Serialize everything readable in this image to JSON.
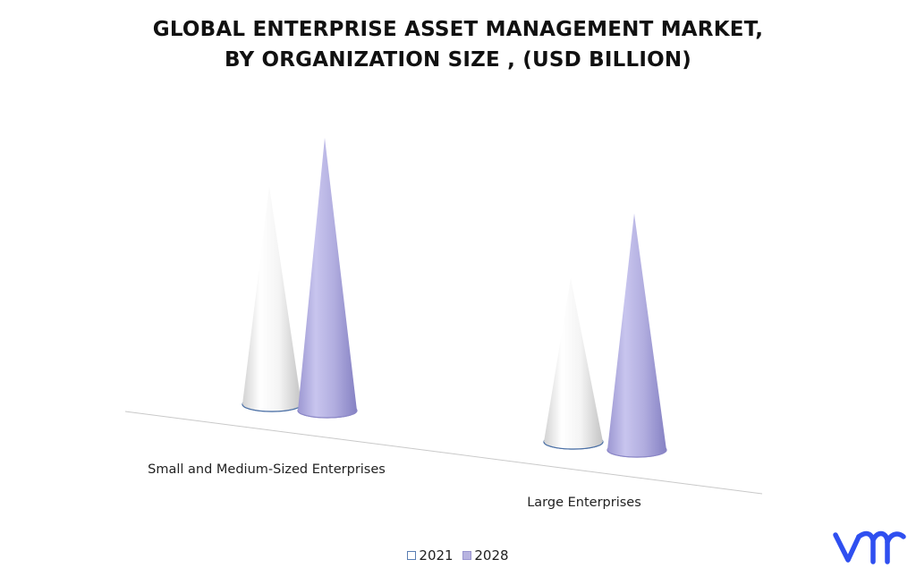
{
  "title_lines": [
    "GLOBAL ENTERPRISE ASSET MANAGEMENT MARKET,",
    "BY ORGANIZATION SIZE , (USD BILLION)"
  ],
  "logo": {
    "icon": "vmr-logo-icon",
    "color": "#2f4ff0"
  },
  "chart_data": {
    "type": "bar",
    "style": "3d-cone",
    "title": "GLOBAL ENTERPRISE ASSET MANAGEMENT MARKET, BY ORGANIZATION SIZE , (USD BILLION)",
    "categories": [
      "Small and Medium-Sized Enterprises",
      "Large Enterprises"
    ],
    "series": [
      {
        "name": "2021",
        "values": [
          2.4,
          1.8
        ],
        "color": "#ffffff"
      },
      {
        "name": "2028",
        "values": [
          3.0,
          2.6
        ],
        "color": "#b7b3e0"
      }
    ],
    "ylim": [
      0,
      3.0
    ],
    "grid": false,
    "legend": "bottom"
  }
}
